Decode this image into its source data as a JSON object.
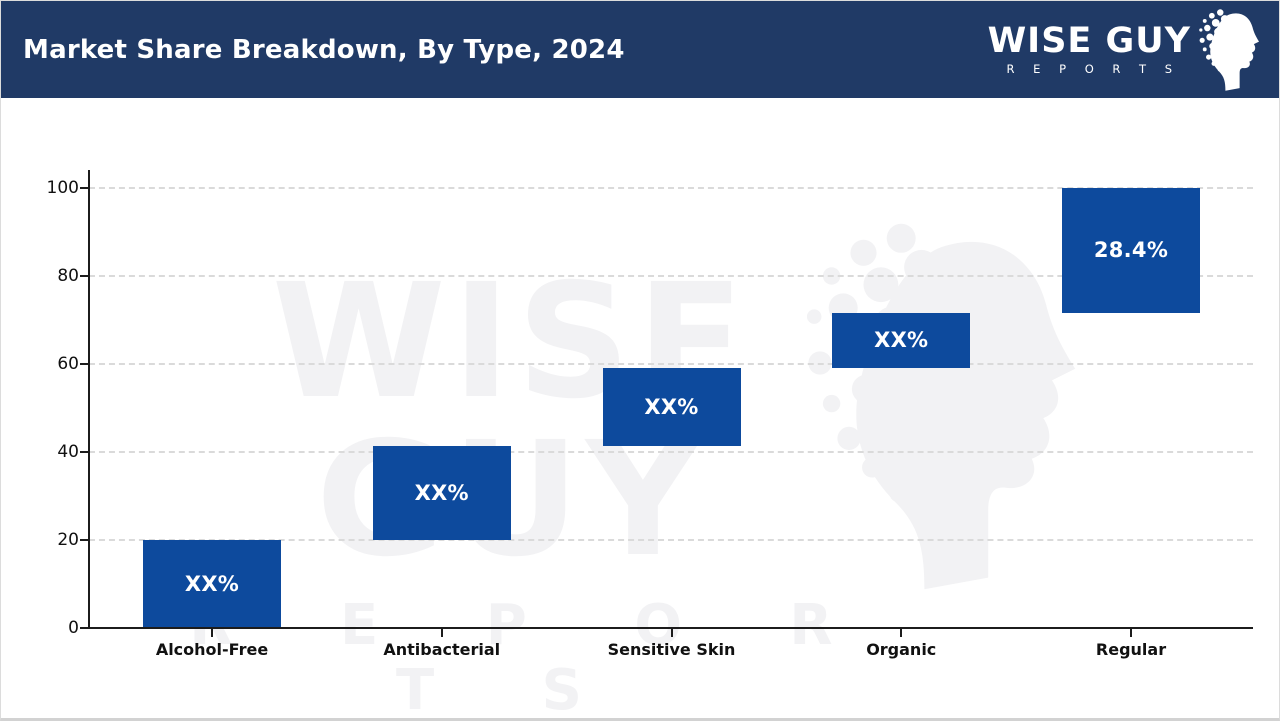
{
  "header": {
    "title": "Market Share Breakdown, By Type, 2024",
    "background_color": "#203A66",
    "logo": {
      "line1": "WISE GUY",
      "line2": "R E P O R T S"
    }
  },
  "watermark": {
    "line1": "WISE GUY",
    "line2": "R E P O R T S"
  },
  "chart_data": {
    "type": "bar",
    "variant": "waterfall",
    "title": "Market Share Breakdown, By Type, 2024",
    "categories": [
      "Alcohol-Free",
      "Antibacterial",
      "Sensitive Skin",
      "Organic",
      "Regular"
    ],
    "segments": [
      {
        "category": "Alcohol-Free",
        "start": 0,
        "end": 20,
        "label": "XX%"
      },
      {
        "category": "Antibacterial",
        "start": 20,
        "end": 41.4,
        "label": "XX%"
      },
      {
        "category": "Sensitive Skin",
        "start": 41.4,
        "end": 59.2,
        "label": "XX%"
      },
      {
        "category": "Organic",
        "start": 59.2,
        "end": 71.6,
        "label": "XX%"
      },
      {
        "category": "Regular",
        "start": 71.6,
        "end": 100,
        "label": "28.4%"
      }
    ],
    "xlabel": "",
    "ylabel": "",
    "ylim": [
      0,
      105
    ],
    "yticks": [
      0,
      20,
      40,
      60,
      80,
      100
    ],
    "grid": "horizontal-dashed",
    "legend": "none",
    "bar_color": "#0D4A9D",
    "bar_label_color": "#FFFFFF",
    "axis_color": "#1C1C1C",
    "gridline_color": "#DADADA"
  }
}
